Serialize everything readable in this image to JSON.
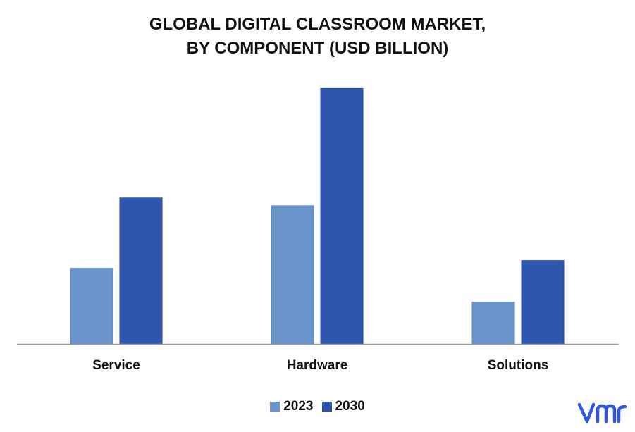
{
  "title_line1": "GLOBAL DIGITAL CLASSROOM MARKET,",
  "title_line2": "BY COMPONENT (USD BILLION)",
  "colors": {
    "series_2023": "#6A95CB",
    "series_2030": "#2F56AE",
    "axis": "#9a9a9a",
    "logo": "#2F56D6"
  },
  "legend": [
    "2023",
    "2030"
  ],
  "logo_icon": "vmr-logo",
  "chart_data": {
    "type": "bar",
    "title": "GLOBAL DIGITAL CLASSROOM MARKET, BY COMPONENT (USD BILLION)",
    "categories": [
      "Service",
      "Hardware",
      "Solutions"
    ],
    "series": [
      {
        "name": "2023",
        "values": [
          29,
          53,
          16
        ]
      },
      {
        "name": "2030",
        "values": [
          56,
          98,
          32
        ]
      }
    ],
    "ylim": [
      0,
      100
    ],
    "grid": false,
    "legend_position": "bottom"
  }
}
